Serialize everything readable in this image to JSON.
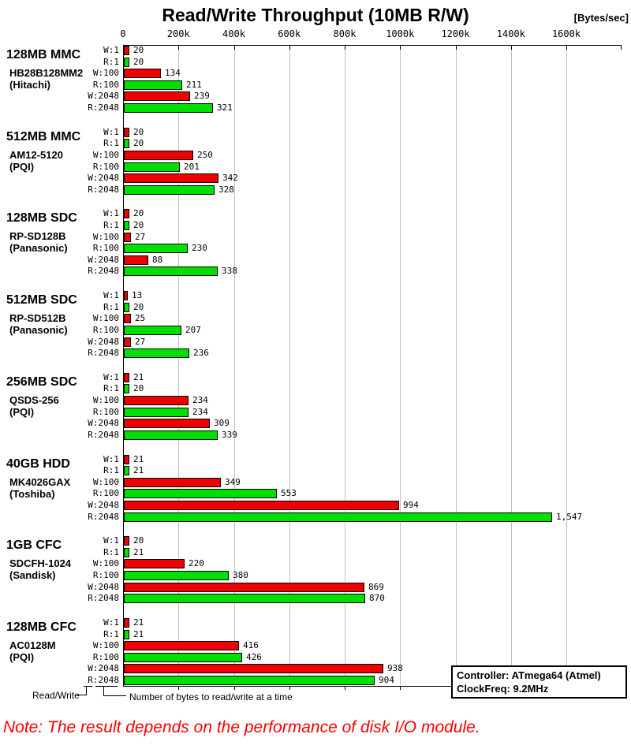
{
  "title": "Read/Write Throughput (10MB R/W)",
  "unit_label": "[Bytes/sec]",
  "legend": {
    "read_write": "Read/Write",
    "bytes_at_a_time": "Number of bytes to read/write at a time"
  },
  "info_box": {
    "line1": "Controller: ATmega64 (Atmel)",
    "line2": "ClockFreq: 9.2MHz"
  },
  "note": "Note: The result depends on the performance of disk I/O module.",
  "chart_data": {
    "type": "bar",
    "orientation": "horizontal",
    "title": "Read/Write Throughput (10MB R/W)",
    "x_unit": "Bytes/sec",
    "x_ticks": [
      "0",
      "200k",
      "400k",
      "600k",
      "800k",
      "1000k",
      "1200k",
      "1400k",
      "1600k"
    ],
    "xlim": [
      0,
      1600000
    ],
    "grid": true,
    "values_scale": 1000,
    "bar_labels": [
      "W:1",
      "R:1",
      "W:100",
      "R:100",
      "W:2048",
      "R:2048"
    ],
    "series_colors": {
      "write": "#EE0000",
      "read": "#00E000"
    },
    "groups": [
      {
        "name": "128MB MMC",
        "model": "HB28B128MM2",
        "maker": "(Hitachi)",
        "values": [
          20,
          20,
          134,
          211,
          239,
          321
        ]
      },
      {
        "name": "512MB MMC",
        "model": "AM12-5120",
        "maker": "(PQI)",
        "values": [
          20,
          20,
          250,
          201,
          342,
          328
        ]
      },
      {
        "name": "128MB SDC",
        "model": "RP-SD128B",
        "maker": "(Panasonic)",
        "values": [
          20,
          20,
          27,
          230,
          88,
          338
        ]
      },
      {
        "name": "512MB SDC",
        "model": "RP-SD512B",
        "maker": "(Panasonic)",
        "values": [
          13,
          20,
          25,
          207,
          27,
          236
        ]
      },
      {
        "name": "256MB SDC",
        "model": "QSDS-256",
        "maker": "(PQI)",
        "values": [
          21,
          20,
          234,
          234,
          309,
          339
        ]
      },
      {
        "name": "40GB HDD",
        "model": "MK4026GAX",
        "maker": "(Toshiba)",
        "values": [
          21,
          21,
          349,
          553,
          994,
          1547
        ]
      },
      {
        "name": "1GB CFC",
        "model": "SDCFH-1024",
        "maker": "(Sandisk)",
        "values": [
          20,
          21,
          220,
          380,
          869,
          870
        ]
      },
      {
        "name": "128MB CFC",
        "model": "AC0128M",
        "maker": "(PQI)",
        "values": [
          21,
          21,
          416,
          426,
          938,
          904
        ]
      }
    ]
  }
}
